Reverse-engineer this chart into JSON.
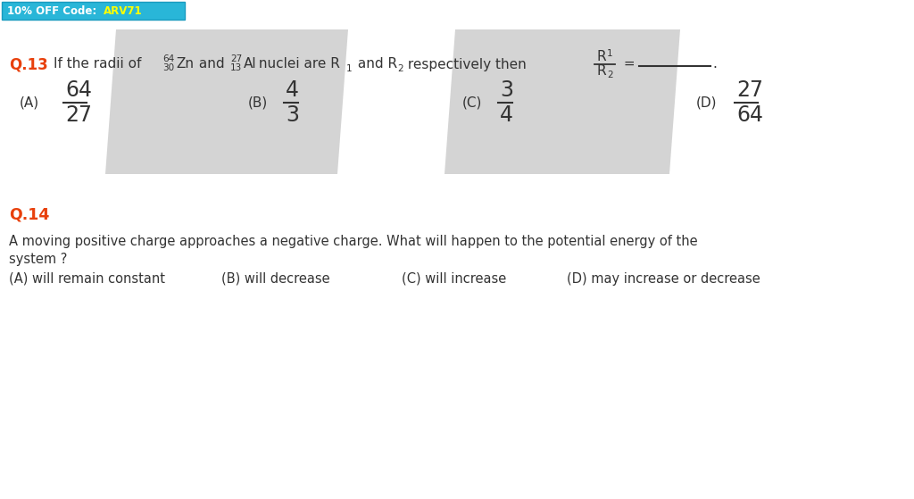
{
  "bg_color": "#ffffff",
  "header_bg": "#29b6d8",
  "header_text_1": "10% OFF Code: ",
  "header_text_2": "ARV71",
  "q13_label": "Q.13",
  "q13_label_color": "#e8400c",
  "option_A_num": "64",
  "option_A_den": "27",
  "option_B_num": "4",
  "option_B_den": "3",
  "option_C_num": "3",
  "option_C_den": "4",
  "option_D_num": "27",
  "option_D_den": "64",
  "q14_label": "Q.14",
  "q14_label_color": "#e8400c",
  "q14_line1": "A moving positive charge approaches a negative charge. What will happen to the potential energy of the",
  "q14_line2": "system ?",
  "q14_opt": "(A) will remain constant  (B) will decrease           (C) will increase           (D) may increase or decrease",
  "shaded_color": "#d4d4d4",
  "text_color": "#333333",
  "white": "#ffffff"
}
